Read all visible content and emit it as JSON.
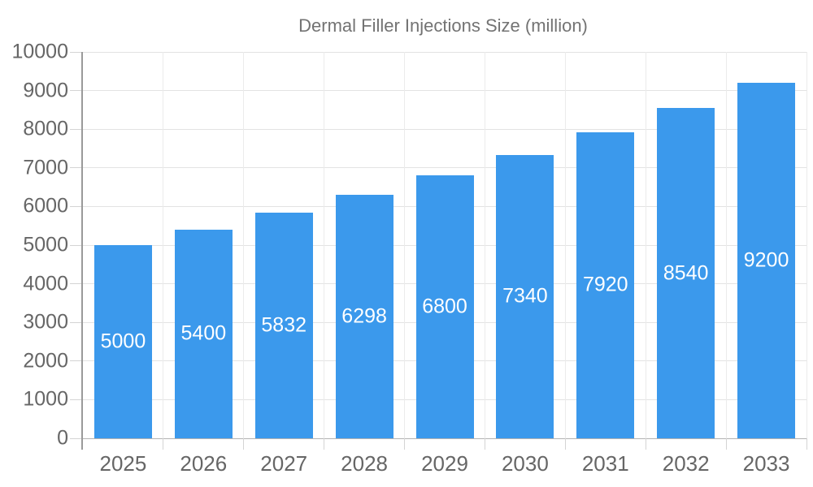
{
  "legend": {
    "label": "Dermal Filler Injections Size (million)"
  },
  "colors": {
    "bar": "#3b99ec",
    "axis_line": "#9a9a9a",
    "grid_horizontal": "#e3e3e3",
    "grid_vertical": "#ebebeb",
    "baseline": "#b3b3b3",
    "tick": "#d4d4d4",
    "axis_text": "#666666",
    "legend_text": "#737373",
    "value_label_text": "#ffffff",
    "background": "#ffffff"
  },
  "chart_data": {
    "type": "bar",
    "title": "Dermal Filler Injections Size (million)",
    "categories": [
      "2025",
      "2026",
      "2027",
      "2028",
      "2029",
      "2030",
      "2031",
      "2032",
      "2033"
    ],
    "series": [
      {
        "name": "Dermal Filler Injections Size (million)",
        "values": [
          5000,
          5400,
          5832,
          6298,
          6800,
          7340,
          7920,
          8540,
          9200
        ]
      }
    ],
    "value_labels": [
      "5000",
      "5400",
      "5832",
      "6298",
      "6800",
      "7340",
      "7920",
      "8540",
      "9200"
    ],
    "xlabel": "",
    "ylabel": "",
    "ylim": [
      0,
      10000
    ],
    "yticks": [
      0,
      1000,
      2000,
      3000,
      4000,
      5000,
      6000,
      7000,
      8000,
      9000,
      10000
    ],
    "ytick_labels": [
      "0",
      "1000",
      "2000",
      "3000",
      "4000",
      "5000",
      "6000",
      "7000",
      "8000",
      "9000",
      "10000"
    ],
    "grid": true,
    "legend_position": "top",
    "value_label_position": "inside-center"
  }
}
